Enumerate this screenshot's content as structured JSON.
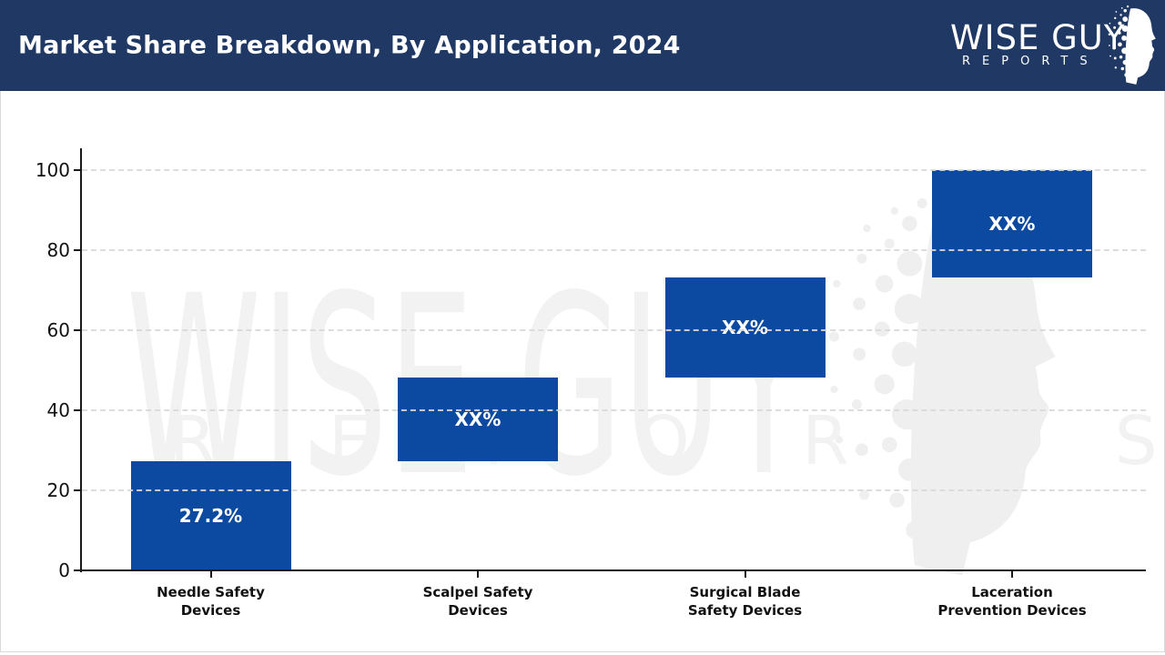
{
  "header": {
    "title": "Market Share Breakdown, By Application, 2024",
    "brand_line1": "WISE GUY",
    "brand_line2": "REPORTS"
  },
  "watermark": {
    "line1": "WISE GUY",
    "line2": "R E P O R T S",
    "face_icon": "dotted-head-profile"
  },
  "colors": {
    "header_bg": "#1f3864",
    "bar_fill": "#0b4aa0",
    "bar_label_text": "#ffffff",
    "axis": "#1a1a1a",
    "gridline": "#d8d8d8",
    "watermark": "#f2f2f2",
    "frame_border": "#d9d9d9"
  },
  "chart_data": {
    "type": "bar",
    "subtype": "waterfall (floating segments, cumulative market share)",
    "title": "Market Share Breakdown, By Application, 2024",
    "xlabel": "",
    "ylabel": "",
    "ylim": [
      0,
      100
    ],
    "yticks": [
      0,
      20,
      40,
      60,
      80,
      100
    ],
    "grid": "horizontal dashed, drawn over bars",
    "legend": "none",
    "categories": [
      [
        "Needle Safety",
        "Devices"
      ],
      [
        "Scalpel Safety",
        "Devices"
      ],
      [
        "Surgical Blade",
        "Safety Devices"
      ],
      [
        "Laceration",
        "Prevention Devices"
      ]
    ],
    "bars": [
      {
        "label": "27.2%",
        "base": 0,
        "top": 27.2,
        "segment_value": 27.2
      },
      {
        "label": "XX%",
        "base": 27.2,
        "top": 48.2,
        "segment_value": 21.0
      },
      {
        "label": "XX%",
        "base": 48.2,
        "top": 73.2,
        "segment_value": 25.0
      },
      {
        "label": "XX%",
        "base": 73.2,
        "top": 100,
        "segment_value": 26.8
      }
    ]
  }
}
